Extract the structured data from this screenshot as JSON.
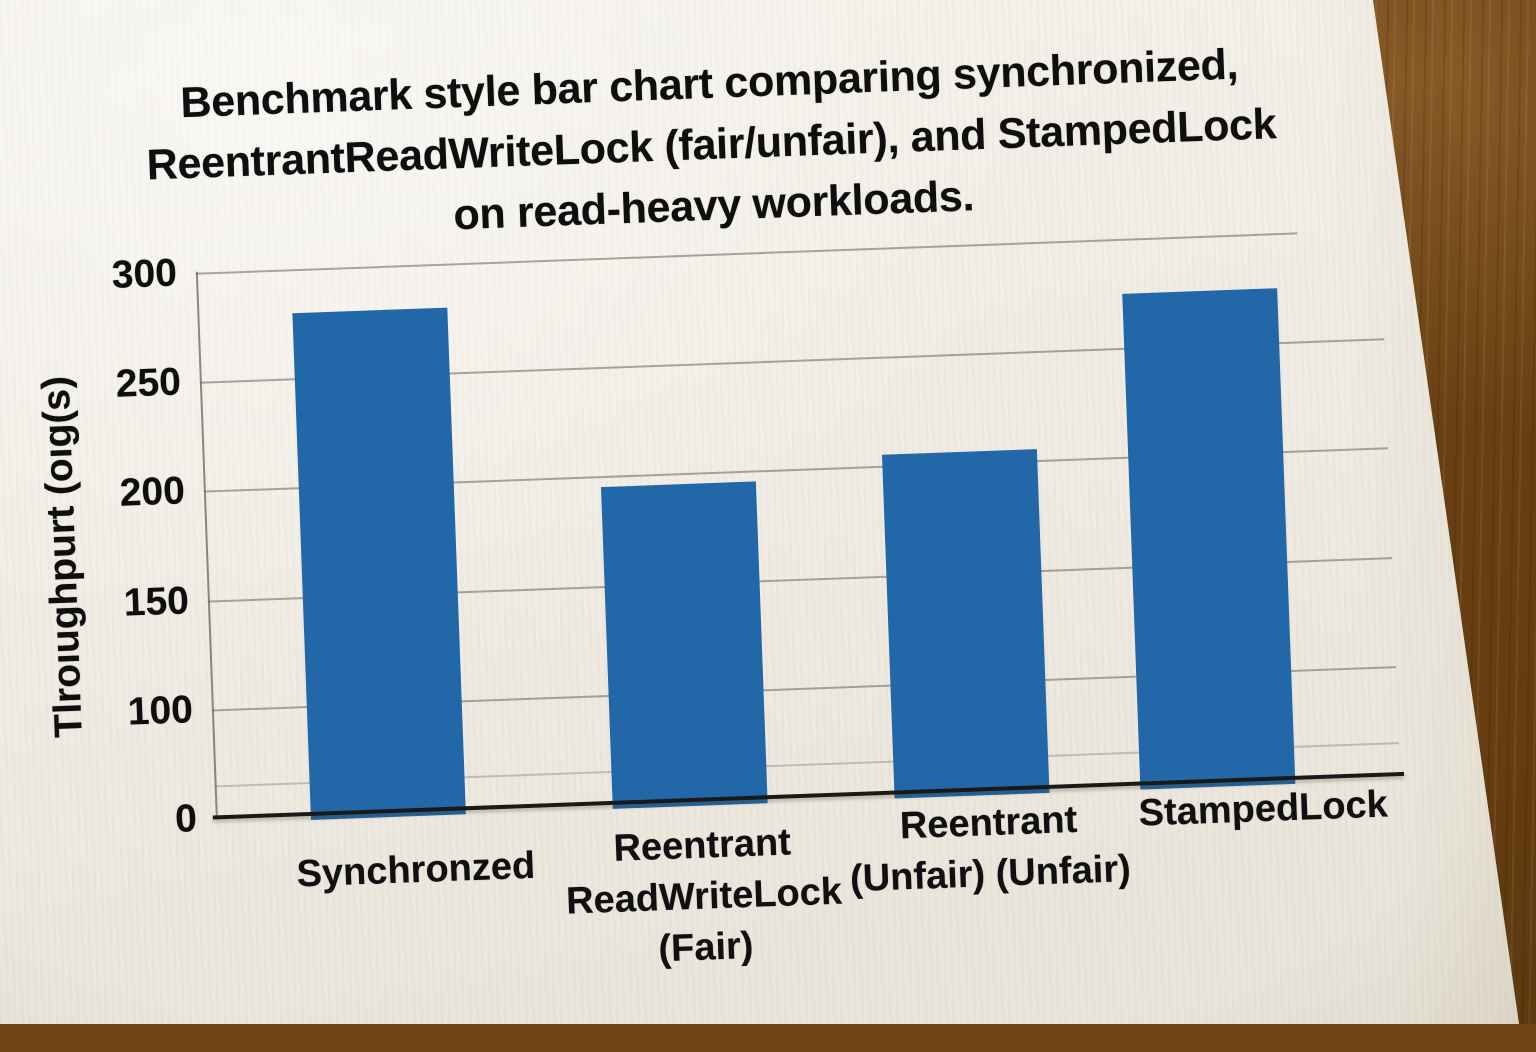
{
  "chart_data": {
    "type": "bar",
    "title": "Benchmark style bar chart comparing synchronized,\nReentrantReadWriteLock (fair/unfair), and StampedLock\non read-heavy workloads.",
    "ylabel": "Tlroıughpurt (oıg(s)",
    "categories": [
      "Synchronzed",
      "Reentrant\nReadWriteLock\n(Fair)",
      "Reentrant\n(Unfair) (Unfair)",
      "StampedLock"
    ],
    "values": [
      280,
      195,
      205,
      275
    ],
    "yticks": [
      300,
      250,
      200,
      150,
      100,
      0
    ],
    "ylim": [
      0,
      300
    ],
    "grid": true,
    "legend": "none",
    "bar_color": "#2268a8",
    "paper_color": "#f1ede5",
    "wood_color": "#85531f",
    "axis_color": "#191919",
    "text_color": "#111111"
  }
}
